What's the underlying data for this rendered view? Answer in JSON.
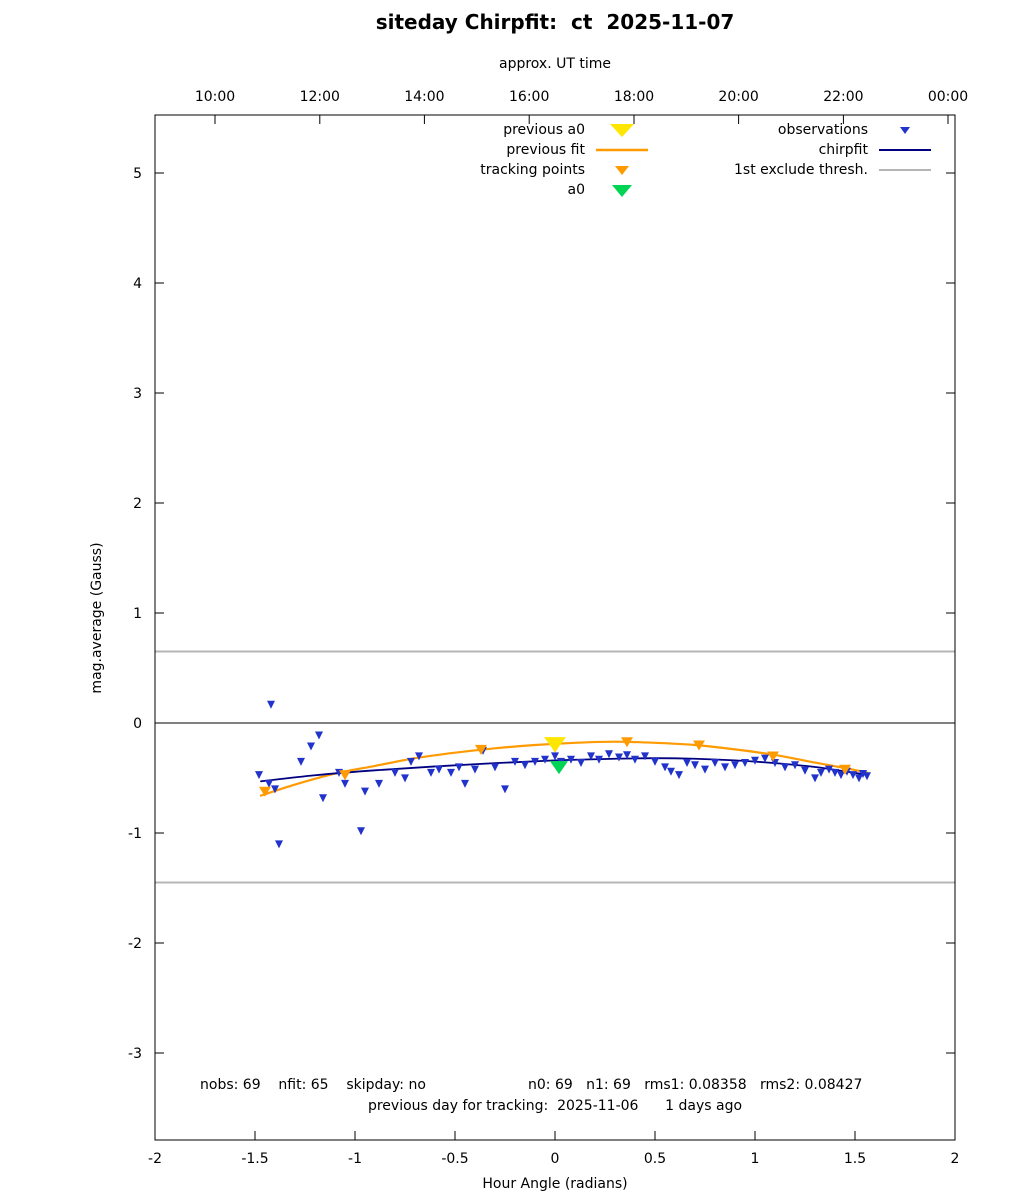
{
  "title": "siteday Chirpfit:  ct  2025-11-07",
  "axes": {
    "top_label": "approx. UT time",
    "left_label": "mag.average (Gauss)",
    "bottom_label": "Hour Angle (radians)"
  },
  "legend": {
    "previous_a0": "previous a0",
    "previous_fit": "previous fit",
    "tracking_points": "tracking points",
    "a0": "a0",
    "observations": "observations",
    "chirpfit": "chirpfit",
    "exclude_threshold": "1st exclude thresh."
  },
  "stats": {
    "line1_left": "nobs: 69    nfit: 65    skipday: no",
    "line1_right": "n0: 69   n1: 69   rms1: 0.08358   rms2: 0.08427",
    "line2": "previous day for tracking:  2025-11-06      1 days ago"
  },
  "colors": {
    "observations": "#2233cc",
    "chirpfit": "#000080",
    "previous_fit": "#ff9a00",
    "tracking_points": "#ff9a00",
    "previous_a0": "#ffe600",
    "a0": "#00d455",
    "exclude_threshold": "#b5b5b5",
    "zero_line": "#000000"
  },
  "chart_data": {
    "type": "scatter",
    "title": "siteday Chirpfit: ct 2025-11-07",
    "xlabel": "Hour Angle (radians)",
    "ylabel": "mag.average (Gauss)",
    "x2label": "approx. UT time",
    "xlim": [
      -2,
      2
    ],
    "ylim": [
      -3.79,
      5.53
    ],
    "x_ticks": [
      -2,
      -1.5,
      -1,
      -0.5,
      0,
      0.5,
      1,
      1.5,
      2
    ],
    "y_ticks": [
      -3,
      -2,
      -1,
      0,
      1,
      2,
      3,
      4,
      5
    ],
    "ut_ticks": [
      {
        "label": "10:00",
        "x": -1.7
      },
      {
        "label": "12:00",
        "x": -1.176
      },
      {
        "label": "14:00",
        "x": -0.653
      },
      {
        "label": "16:00",
        "x": -0.129
      },
      {
        "label": "18:00",
        "x": 0.395
      },
      {
        "label": "20:00",
        "x": 0.918
      },
      {
        "label": "22:00",
        "x": 1.442
      },
      {
        "label": "00:00",
        "x": 1.965
      }
    ],
    "reference_lines": [
      {
        "name": "exclude-threshold-upper",
        "y": 0.65,
        "color_key": "exclude_threshold",
        "width": 2
      },
      {
        "name": "exclude-threshold-lower",
        "y": -1.45,
        "color_key": "exclude_threshold",
        "width": 2
      },
      {
        "name": "zero-line",
        "y": 0,
        "color_key": "zero_line",
        "width": 1
      }
    ],
    "series": [
      {
        "name": "previous fit",
        "type": "line",
        "color_key": "previous_fit",
        "line_width": 2.2,
        "points": [
          [
            -1.47,
            -0.66
          ],
          [
            -1.3,
            -0.56
          ],
          [
            -1.1,
            -0.46
          ],
          [
            -0.9,
            -0.39
          ],
          [
            -0.7,
            -0.32
          ],
          [
            -0.5,
            -0.27
          ],
          [
            -0.3,
            -0.23
          ],
          [
            -0.1,
            -0.2
          ],
          [
            0.1,
            -0.18
          ],
          [
            0.3,
            -0.17
          ],
          [
            0.5,
            -0.18
          ],
          [
            0.7,
            -0.2
          ],
          [
            0.9,
            -0.24
          ],
          [
            1.1,
            -0.29
          ],
          [
            1.3,
            -0.36
          ],
          [
            1.45,
            -0.41
          ],
          [
            1.56,
            -0.45
          ]
        ]
      },
      {
        "name": "chirpfit",
        "type": "line",
        "color_key": "chirpfit",
        "line_width": 1.8,
        "points": [
          [
            -1.47,
            -0.53
          ],
          [
            -1.2,
            -0.475
          ],
          [
            -0.9,
            -0.43
          ],
          [
            -0.6,
            -0.395
          ],
          [
            -0.3,
            -0.365
          ],
          [
            0,
            -0.34
          ],
          [
            0.3,
            -0.325
          ],
          [
            0.5,
            -0.32
          ],
          [
            0.7,
            -0.325
          ],
          [
            0.9,
            -0.34
          ],
          [
            1.1,
            -0.365
          ],
          [
            1.3,
            -0.4
          ],
          [
            1.45,
            -0.44
          ],
          [
            1.56,
            -0.47
          ]
        ]
      },
      {
        "name": "observations",
        "type": "scatter",
        "marker": "triangle-down",
        "marker_size": "small",
        "color_key": "observations",
        "points": [
          [
            -1.48,
            -0.47
          ],
          [
            -1.43,
            -0.55
          ],
          [
            -1.4,
            -0.6
          ],
          [
            -1.42,
            0.17
          ],
          [
            -1.38,
            -1.1
          ],
          [
            -1.27,
            -0.35
          ],
          [
            -1.22,
            -0.21
          ],
          [
            -1.18,
            -0.11
          ],
          [
            -1.16,
            -0.68
          ],
          [
            -1.08,
            -0.45
          ],
          [
            -1.05,
            -0.55
          ],
          [
            -0.97,
            -0.98
          ],
          [
            -0.95,
            -0.62
          ],
          [
            -0.88,
            -0.55
          ],
          [
            -0.8,
            -0.45
          ],
          [
            -0.75,
            -0.5
          ],
          [
            -0.72,
            -0.35
          ],
          [
            -0.68,
            -0.3
          ],
          [
            -0.62,
            -0.45
          ],
          [
            -0.58,
            -0.42
          ],
          [
            -0.52,
            -0.45
          ],
          [
            -0.48,
            -0.4
          ],
          [
            -0.45,
            -0.55
          ],
          [
            -0.4,
            -0.42
          ],
          [
            -0.36,
            -0.25
          ],
          [
            -0.3,
            -0.4
          ],
          [
            -0.25,
            -0.6
          ],
          [
            -0.2,
            -0.35
          ],
          [
            -0.15,
            -0.38
          ],
          [
            -0.1,
            -0.35
          ],
          [
            -0.05,
            -0.33
          ],
          [
            0.0,
            -0.3
          ],
          [
            0.03,
            -0.35
          ],
          [
            0.08,
            -0.33
          ],
          [
            0.13,
            -0.36
          ],
          [
            0.18,
            -0.3
          ],
          [
            0.22,
            -0.33
          ],
          [
            0.27,
            -0.28
          ],
          [
            0.32,
            -0.31
          ],
          [
            0.36,
            -0.29
          ],
          [
            0.4,
            -0.33
          ],
          [
            0.45,
            -0.3
          ],
          [
            0.5,
            -0.35
          ],
          [
            0.55,
            -0.4
          ],
          [
            0.58,
            -0.44
          ],
          [
            0.62,
            -0.47
          ],
          [
            0.66,
            -0.36
          ],
          [
            0.7,
            -0.38
          ],
          [
            0.75,
            -0.42
          ],
          [
            0.8,
            -0.36
          ],
          [
            0.85,
            -0.4
          ],
          [
            0.9,
            -0.38
          ],
          [
            0.95,
            -0.36
          ],
          [
            1.0,
            -0.34
          ],
          [
            1.05,
            -0.32
          ],
          [
            1.1,
            -0.36
          ],
          [
            1.15,
            -0.4
          ],
          [
            1.2,
            -0.38
          ],
          [
            1.25,
            -0.43
          ],
          [
            1.3,
            -0.5
          ],
          [
            1.33,
            -0.45
          ],
          [
            1.37,
            -0.42
          ],
          [
            1.4,
            -0.45
          ],
          [
            1.43,
            -0.47
          ],
          [
            1.46,
            -0.44
          ],
          [
            1.49,
            -0.47
          ],
          [
            1.52,
            -0.5
          ],
          [
            1.54,
            -0.46
          ],
          [
            1.56,
            -0.48
          ]
        ]
      },
      {
        "name": "tracking points",
        "type": "scatter",
        "marker": "triangle-down",
        "marker_size": "medium",
        "color_key": "tracking_points",
        "points": [
          [
            -1.45,
            -0.62
          ],
          [
            -1.05,
            -0.47
          ],
          [
            -0.37,
            -0.24
          ],
          [
            0.0,
            -0.22
          ],
          [
            0.36,
            -0.17
          ],
          [
            0.72,
            -0.2
          ],
          [
            1.09,
            -0.3
          ],
          [
            1.45,
            -0.42
          ]
        ]
      },
      {
        "name": "previous a0",
        "type": "scatter",
        "marker": "triangle-down",
        "marker_size": "xlarge",
        "color_key": "previous_a0",
        "points": [
          [
            0.0,
            -0.19
          ]
        ]
      },
      {
        "name": "a0",
        "type": "scatter",
        "marker": "triangle-down",
        "marker_size": "large",
        "color_key": "a0",
        "points": [
          [
            0.02,
            -0.4
          ]
        ]
      }
    ],
    "annotations": {
      "nobs": 69,
      "nfit": 65,
      "skipday": "no",
      "n0": 69,
      "n1": 69,
      "rms1": 0.08358,
      "rms2": 0.08427,
      "previous_day_for_tracking": "2025-11-06",
      "days_ago": "1 days ago"
    },
    "legend_position": "top-inside",
    "grid": false
  }
}
